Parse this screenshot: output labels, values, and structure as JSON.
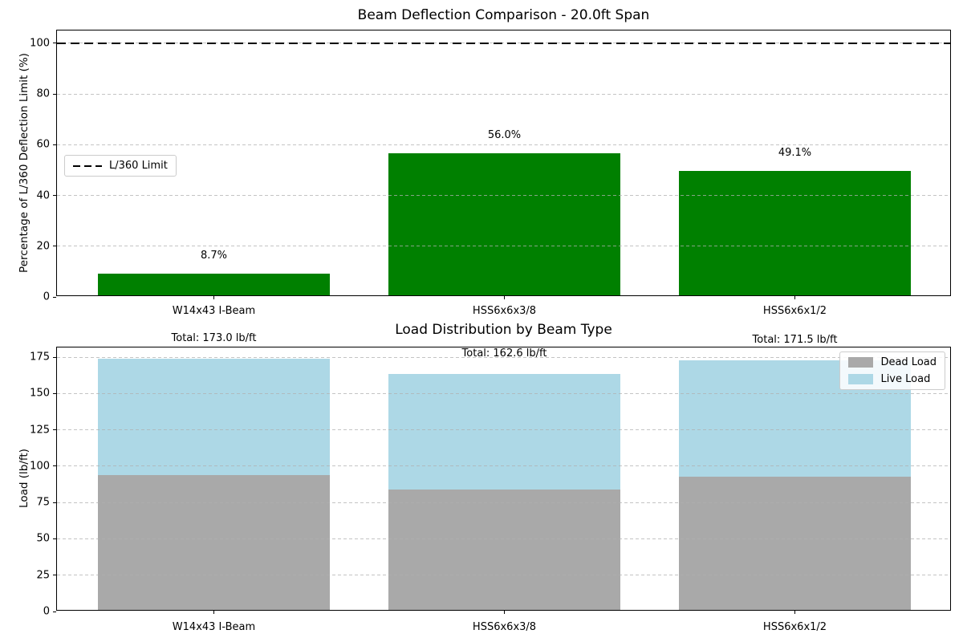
{
  "chart_data": [
    {
      "type": "bar",
      "title": "Beam Deflection Comparison - 20.0ft Span",
      "ylabel": "Percentage of L/360 Deflection Limit (%)",
      "xlabel": "",
      "categories": [
        "W14x43 I-Beam",
        "HSS6x6x3/8",
        "HSS6x6x1/2"
      ],
      "values": [
        8.7,
        56.0,
        49.1
      ],
      "bar_labels": [
        "8.7%",
        "56.0%",
        "49.1%"
      ],
      "bar_color": "#008000",
      "yticks": [
        0,
        20,
        40,
        60,
        80,
        100
      ],
      "ylim": [
        0,
        105
      ],
      "grid": "dashed-horizontal",
      "reference_line": {
        "value": 100,
        "color": "#000000",
        "style": "dashed"
      },
      "legend": {
        "position": "center-left",
        "entries": [
          {
            "label": "L/360 Limit",
            "swatch": "dashed-line",
            "color": "#000000"
          }
        ]
      }
    },
    {
      "type": "bar-stacked",
      "title": "Load Distribution by Beam Type",
      "ylabel": "Load (lb/ft)",
      "xlabel": "",
      "categories": [
        "W14x43 I-Beam",
        "HSS6x6x3/8",
        "HSS6x6x1/2"
      ],
      "series": [
        {
          "name": "Dead Load",
          "color": "#A9A9A9",
          "values": [
            93.0,
            82.6,
            91.5
          ]
        },
        {
          "name": "Live Load",
          "color": "#ADD8E6",
          "values": [
            80.0,
            80.0,
            80.0
          ]
        }
      ],
      "totals": [
        173.0,
        162.6,
        171.5
      ],
      "total_labels": [
        "Total: 173.0 lb/ft",
        "Total: 162.6 lb/ft",
        "Total: 171.5 lb/ft"
      ],
      "yticks": [
        0,
        25,
        50,
        75,
        100,
        125,
        150,
        175
      ],
      "ylim": [
        0,
        181.65
      ],
      "grid": "dashed-horizontal",
      "legend": {
        "position": "upper-right",
        "entries": [
          {
            "label": "Dead Load",
            "swatch": "patch",
            "color": "#A9A9A9"
          },
          {
            "label": "Live Load",
            "swatch": "patch",
            "color": "#ADD8E6"
          }
        ]
      }
    }
  ]
}
